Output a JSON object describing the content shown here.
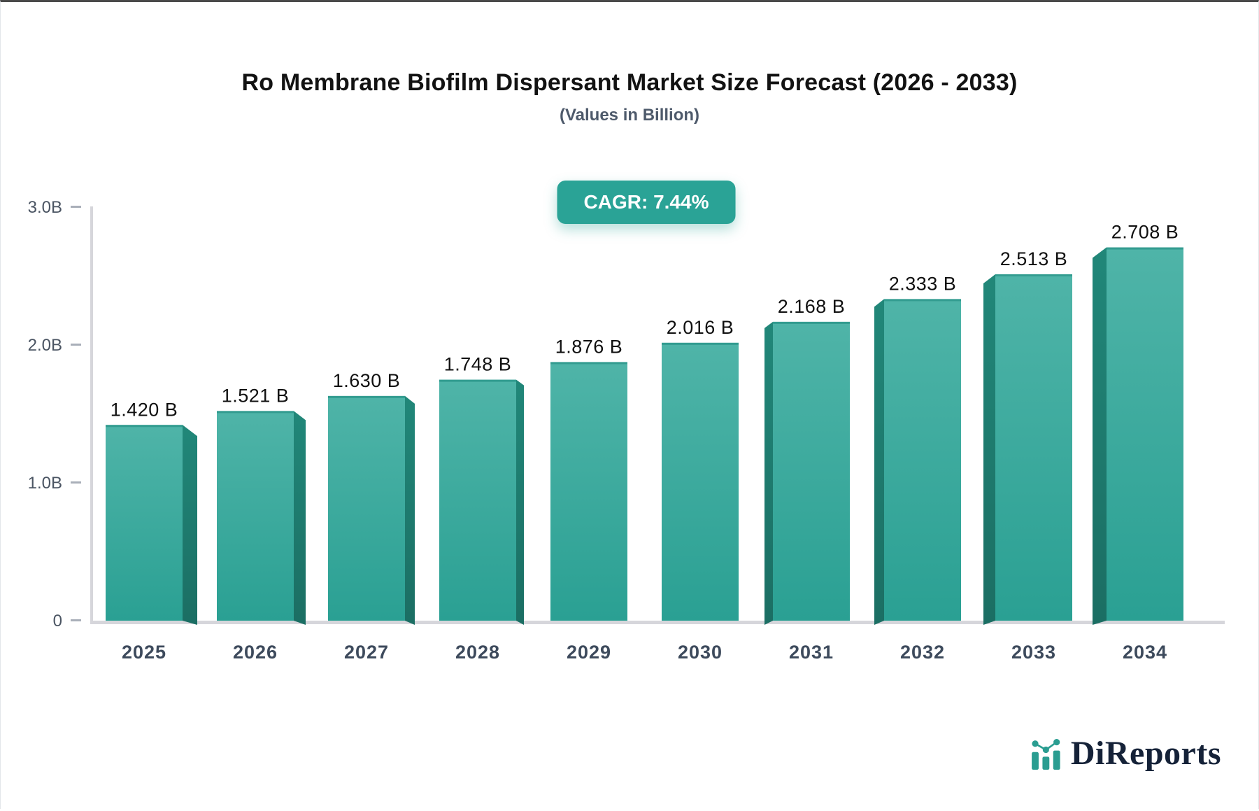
{
  "header": {
    "title": "Ro Membrane Biofilm Dispersant Market Size Forecast (2026 - 2033)",
    "subtitle": "(Values in Billion)",
    "cagr_label": "CAGR: 7.44%"
  },
  "chart_data": {
    "type": "bar",
    "title": "Ro Membrane Biofilm Dispersant Market Size Forecast (2026 - 2033)",
    "subtitle": "(Values in Billion)",
    "cagr": "7.44%",
    "categories": [
      "2025",
      "2026",
      "2027",
      "2028",
      "2029",
      "2030",
      "2031",
      "2032",
      "2033",
      "2034"
    ],
    "values": [
      1.42,
      1.521,
      1.63,
      1.748,
      1.876,
      2.016,
      2.168,
      2.333,
      2.513,
      2.708
    ],
    "labels": [
      "1.420 B",
      "1.521 B",
      "1.630 B",
      "1.748 B",
      "1.876 B",
      "2.016 B",
      "2.168 B",
      "2.333 B",
      "2.513 B",
      "2.708 B"
    ],
    "xlabel": "",
    "ylabel": "",
    "ylim": [
      0,
      3
    ],
    "yticks": [
      {
        "value": 0,
        "label": "0"
      },
      {
        "value": 1,
        "label": "1.0B"
      },
      {
        "value": 2,
        "label": "2.0B"
      },
      {
        "value": 3,
        "label": "3.0B"
      }
    ],
    "grid": false,
    "legend": "none",
    "colors": {
      "bar_face_top": "#4fb4a8",
      "bar_face_bottom": "#2aa093",
      "bar_top_edge": "#2e988c",
      "bar_side_top": "#218779",
      "bar_side_bottom": "#1b6e63",
      "badge_background": "#2aa396",
      "badge_text": "#ffffff",
      "axis_line": "#d6d6db",
      "tick_mark": "#a9afb9",
      "value_label_text": "#101010",
      "axis_label_text": "#4b5563",
      "x_label_text": "#3d4a5c"
    }
  },
  "logo": {
    "text": "DiReports",
    "icon": "mini-bar-line-chart-icon",
    "icon_color": "#2a9d91",
    "text_color": "#152238"
  }
}
